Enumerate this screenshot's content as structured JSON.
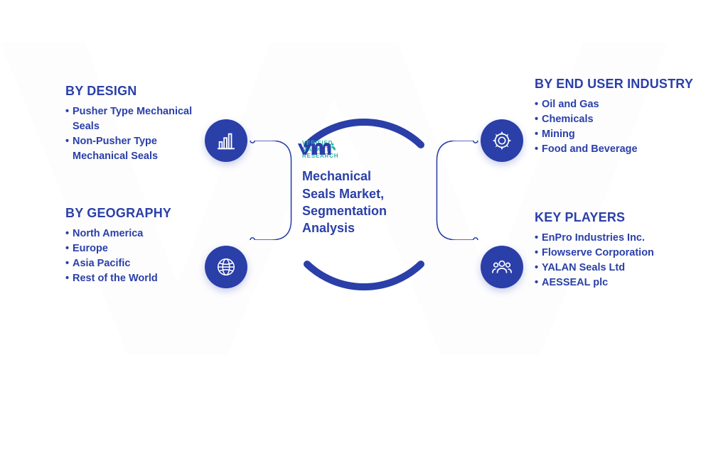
{
  "colors": {
    "primary": "#2a3fa8",
    "accent": "#1fb6a8",
    "white": "#ffffff",
    "watermark": "#e8ecf7",
    "ring_stroke_width": 10,
    "connector_stroke_width": 2
  },
  "center": {
    "logo_text_l1": "VERIFIED",
    "logo_text_l2": "MARKET",
    "logo_text_l3": "RESEARCH",
    "title_l1": "Mechanical",
    "title_l2": "Seals Market,",
    "title_l3": "Segmentation",
    "title_l4": "Analysis"
  },
  "segments": {
    "tl": {
      "heading": "BY DESIGN",
      "items": [
        "Pusher Type Mechanical Seals",
        "Non-Pusher Type Mechanical Seals"
      ],
      "icon": "bar-chart"
    },
    "bl": {
      "heading": "BY GEOGRAPHY",
      "items": [
        "North America",
        "Europe",
        "Asia Pacific",
        "Rest of the World"
      ],
      "icon": "globe"
    },
    "tr": {
      "heading": "BY END USER INDUSTRY",
      "items": [
        "Oil and Gas",
        "Chemicals",
        "Mining",
        "Food and Beverage"
      ],
      "icon": "gear"
    },
    "br": {
      "heading": "KEY PLAYERS",
      "items": [
        "EnPro Industries Inc.",
        "Flowserve Corporation",
        "YALAN Seals Ltd",
        "AESSEAL plc"
      ],
      "icon": "people"
    }
  }
}
